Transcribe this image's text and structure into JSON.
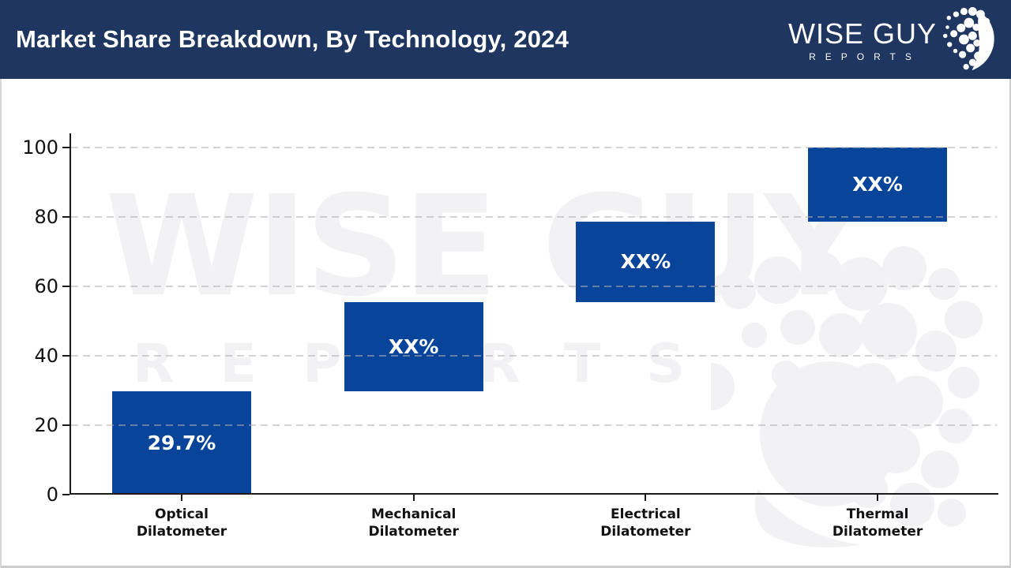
{
  "header": {
    "title": "Market Share Breakdown, By Technology, 2024",
    "logo": {
      "line1": "WISE GUY",
      "line2": "REPORTS"
    }
  },
  "watermark": {
    "line1": "WISE GUY",
    "line2": "REPORTS"
  },
  "chart_data": {
    "type": "bar",
    "subtype": "waterfall",
    "title": "Market Share Breakdown, By Technology, 2024",
    "xlabel": "",
    "ylabel": "",
    "categories": [
      {
        "line1": "Optical",
        "line2": "Dilatometer"
      },
      {
        "line1": "Mechanical",
        "line2": "Dilatometer"
      },
      {
        "line1": "Electrical",
        "line2": "Dilatometer"
      },
      {
        "line1": "Thermal",
        "line2": "Dilatometer"
      }
    ],
    "bars": [
      {
        "label": "29.7%",
        "start": 0,
        "end": 29.7
      },
      {
        "label": "XX%",
        "start": 29.7,
        "end": 55.4
      },
      {
        "label": "XX%",
        "start": 55.4,
        "end": 78.7
      },
      {
        "label": "XX%",
        "start": 78.7,
        "end": 100
      }
    ],
    "yticks": [
      0,
      20,
      40,
      60,
      80,
      100
    ],
    "ylim": [
      0,
      104
    ],
    "bar_color": "#08459a",
    "grid": true,
    "gridline_style": "dashed",
    "legend": false
  }
}
